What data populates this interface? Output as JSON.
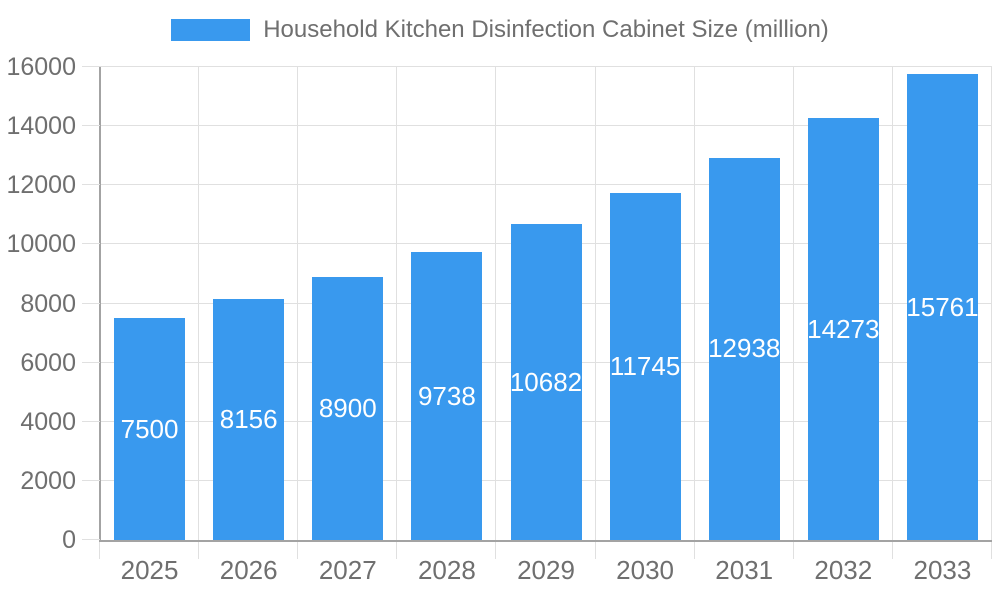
{
  "legend": {
    "label": "Household Kitchen Disinfection Cabinet Size (million)"
  },
  "chart_data": {
    "type": "bar",
    "title": "Household Kitchen Disinfection Cabinet Size (million)",
    "categories": [
      "2025",
      "2026",
      "2027",
      "2028",
      "2029",
      "2030",
      "2031",
      "2032",
      "2033"
    ],
    "values": [
      7500,
      8156,
      8900,
      9738,
      10682,
      11745,
      12938,
      14273,
      15761
    ],
    "xlabel": "",
    "ylabel": "",
    "ylim": [
      0,
      16000
    ],
    "yticks": [
      0,
      2000,
      4000,
      6000,
      8000,
      10000,
      12000,
      14000,
      16000
    ],
    "grid": true,
    "legend_position": "top",
    "value_labels": "inside-center",
    "colors": {
      "bar": "#3999EE",
      "value_label": "#FFFFFF",
      "axis_text": "#6F6F6F",
      "grid_line": "#E0E0E0",
      "axis_line": "#A3A3A3",
      "background": "#FFFFFF"
    }
  }
}
